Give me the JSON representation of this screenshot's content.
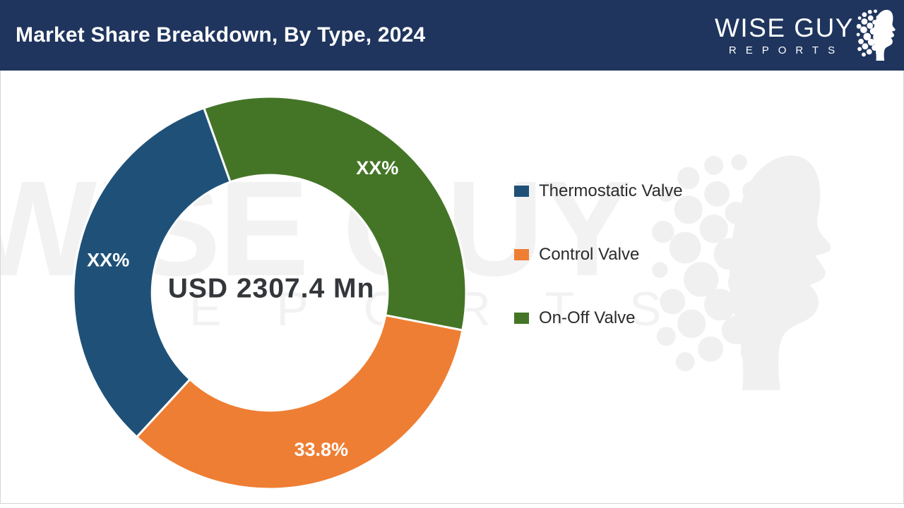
{
  "header": {
    "title": "Market Share Breakdown, By Type, 2024",
    "logo": {
      "brand_line1": "WISE GUY",
      "brand_line2": "REPORTS"
    }
  },
  "watermark": {
    "line1": "WISE GUY",
    "line2": "REPORTS"
  },
  "chart_data": {
    "type": "pie",
    "variant": "donut",
    "title": "Market Share Breakdown, By Type, 2024",
    "center_label": "USD 2307.4 Mn",
    "start_angle_deg": -19.6,
    "inner_radius_ratio": 0.6,
    "label_radius_ratio": 0.84,
    "segments": [
      {
        "name": "On-Off Valve",
        "value_pct": 33.5,
        "display_label": "XX%",
        "color": "#447527"
      },
      {
        "name": "Control Valve",
        "value_pct": 33.8,
        "display_label": "33.8%",
        "color": "#EE7E33"
      },
      {
        "name": "Thermostatic Valve",
        "value_pct": 32.7,
        "display_label": "XX%",
        "color": "#1F5178"
      }
    ],
    "legend": {
      "position": "right",
      "items": [
        {
          "label": "Thermostatic Valve",
          "color": "#1F5178"
        },
        {
          "label": "Control Valve",
          "color": "#EE7E33"
        },
        {
          "label": "On-Off Valve",
          "color": "#447527"
        }
      ]
    }
  },
  "colors": {
    "header_bg": "#1F355E",
    "content_bg": "#FFFFFF",
    "watermark": "#F1F1F2",
    "border": "#D5D5D5",
    "center_text": "#33373B",
    "legend_text": "#2B2B2B",
    "slice_label_text": "#FFFFFF"
  }
}
